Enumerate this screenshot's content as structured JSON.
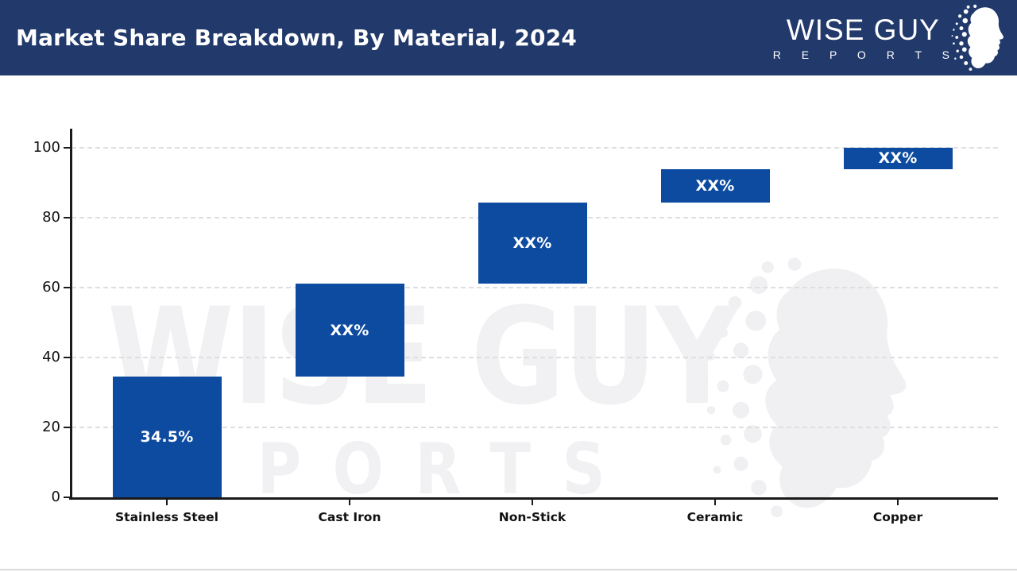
{
  "header": {
    "title": "Market Share Breakdown, By Material, 2024",
    "bg_color": "#21396b",
    "logo": {
      "wordmark": "WISE GUY",
      "reports": "R E P O R T S"
    }
  },
  "watermark": {
    "wordmark": "WISE GUY",
    "reports": "REPORTS"
  },
  "chart_data": {
    "type": "bar",
    "subtype": "waterfall-floating-bars",
    "title": "Market Share Breakdown, By Material, 2024",
    "categories": [
      "Stainless Steel",
      "Cast Iron",
      "Non-Stick",
      "Ceramic",
      "Copper"
    ],
    "segments": [
      {
        "category": "Stainless Steel",
        "start": 0,
        "end": 34.5,
        "label": "34.5%"
      },
      {
        "category": "Cast Iron",
        "start": 34.5,
        "end": 61.1,
        "label": "XX%"
      },
      {
        "category": "Non-Stick",
        "start": 61.1,
        "end": 84.4,
        "label": "XX%"
      },
      {
        "category": "Ceramic",
        "start": 84.4,
        "end": 93.9,
        "label": "XX%"
      },
      {
        "category": "Copper",
        "start": 93.9,
        "end": 100,
        "label": "XX%"
      }
    ],
    "y_ticks": [
      0,
      20,
      40,
      60,
      80,
      100
    ],
    "ylim": [
      0,
      105
    ],
    "xlabel": "",
    "ylabel": "",
    "grid": "horizontal-dashed",
    "gridline_color": "#dedede",
    "bar_color": "#0c4ba0",
    "bar_label_color": "#ffffff",
    "axis_color": "#1a1a1a",
    "legend": "none"
  }
}
